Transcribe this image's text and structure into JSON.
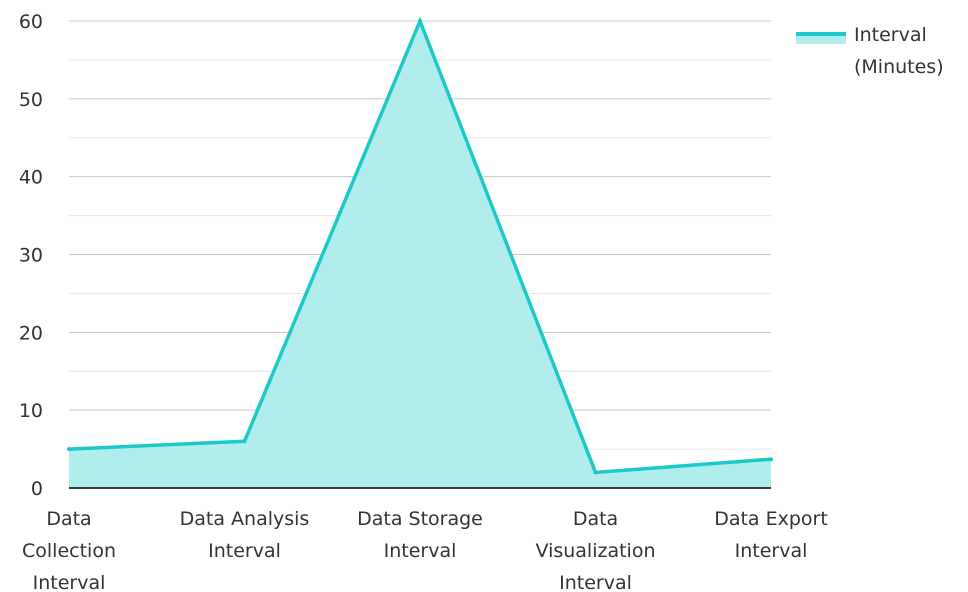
{
  "chart_data": {
    "type": "area",
    "categories": [
      "Data Collection Interval",
      "Data Analysis Interval",
      "Data Storage Interval",
      "Data Visualization Interval",
      "Data Export Interval"
    ],
    "category_lines": [
      [
        "Data",
        "Collection",
        "Interval"
      ],
      [
        "Data Analysis",
        "Interval"
      ],
      [
        "Data Storage",
        "Interval"
      ],
      [
        "Data",
        "Visualization",
        "Interval"
      ],
      [
        "Data Export",
        "Interval"
      ]
    ],
    "series": [
      {
        "name": "Interval (Minutes)",
        "values": [
          5,
          6,
          60,
          2,
          3.7
        ]
      }
    ],
    "legend_lines": [
      "Interval",
      "(Minutes)"
    ],
    "y_ticks": [
      0,
      10,
      20,
      30,
      40,
      50,
      60
    ],
    "ylim": [
      0,
      60
    ],
    "grid": true,
    "legend_position": "top-right",
    "colors": {
      "line": "#1cc8c8",
      "fill": "#b2eded",
      "grid_major": "#c8c8c8",
      "grid_minor": "#e6e6e6",
      "axis": "#000000"
    }
  }
}
